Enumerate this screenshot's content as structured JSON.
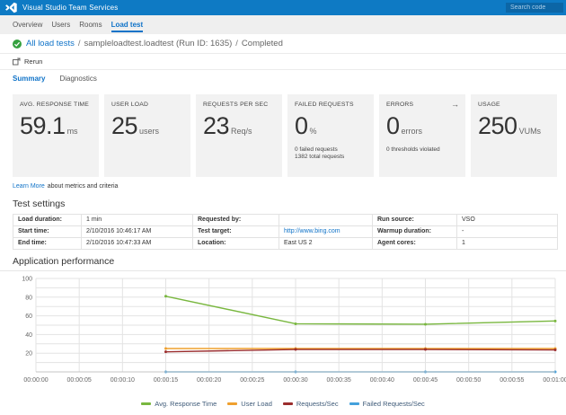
{
  "header": {
    "app_title": "Visual Studio Team Services",
    "search_placeholder": "Search code"
  },
  "nav": {
    "tabs": [
      {
        "label": "Overview"
      },
      {
        "label": "Users"
      },
      {
        "label": "Rooms"
      },
      {
        "label": "Load test"
      }
    ]
  },
  "breadcrumb": {
    "all_tests_link": "All load tests",
    "separator": "/",
    "run_name": "sampleloadtest.loadtest (Run ID: 1635)",
    "status": "Completed"
  },
  "toolbar": {
    "rerun_label": "Rerun"
  },
  "subtabs": {
    "summary": "Summary",
    "diagnostics": "Diagnostics"
  },
  "cards": [
    {
      "title": "AVG. RESPONSE TIME",
      "value": "59.1",
      "unit": "ms",
      "sub1": "",
      "sub2": ""
    },
    {
      "title": "USER LOAD",
      "value": "25",
      "unit": "users",
      "sub1": "",
      "sub2": ""
    },
    {
      "title": "REQUESTS PER SEC",
      "value": "23",
      "unit": "Req/s",
      "sub1": "",
      "sub2": ""
    },
    {
      "title": "FAILED REQUESTS",
      "value": "0",
      "unit": "%",
      "sub1": "0 failed requests",
      "sub2": "1382 total requests"
    },
    {
      "title": "ERRORS",
      "value": "0",
      "unit": "errors",
      "sub1": "0 thresholds violated",
      "sub2": "",
      "arrow": "→"
    },
    {
      "title": "USAGE",
      "value": "250",
      "unit": "VUMs",
      "sub1": "",
      "sub2": ""
    }
  ],
  "learn_more": {
    "link_text": "Learn More",
    "rest_text": "about metrics and criteria"
  },
  "test_settings": {
    "heading": "Test settings",
    "rows": [
      {
        "c1_label": "Load duration:",
        "c1_value": "1 min",
        "c2_label": "Requested by:",
        "c2_value": "",
        "c3_label": "Run source:",
        "c3_value": "VSO"
      },
      {
        "c1_label": "Start time:",
        "c1_value": "2/10/2016 10:46:17 AM",
        "c2_label": "Test target:",
        "c2_value": "http://www.bing.com",
        "c3_label": "Warmup duration:",
        "c3_value": "-"
      },
      {
        "c1_label": "End time:",
        "c1_value": "2/10/2016 10:47:33 AM",
        "c2_label": "Location:",
        "c2_value": "East US 2",
        "c3_label": "Agent cores:",
        "c3_value": "1"
      }
    ]
  },
  "app_performance": {
    "heading": "Application performance"
  },
  "chart_data": {
    "type": "line",
    "title": "Application performance",
    "x_seconds": [
      15,
      30,
      45,
      60
    ],
    "xlim_seconds": [
      0,
      60
    ],
    "xticks": [
      "00:00:00",
      "00:00:05",
      "00:00:10",
      "00:00:15",
      "00:00:20",
      "00:00:25",
      "00:00:30",
      "00:00:35",
      "00:00:40",
      "00:00:45",
      "00:00:50",
      "00:00:55",
      "00:01:00"
    ],
    "ylim": [
      0,
      100
    ],
    "yticks": [
      20,
      40,
      60,
      80,
      100
    ],
    "y_minor_step": 10,
    "grid": true,
    "legend_position": "bottom",
    "series": [
      {
        "name": "Avg. Response Time",
        "color": "#79B73F",
        "values": [
          81,
          51.5,
          51,
          54.5
        ]
      },
      {
        "name": "User Load",
        "color": "#EFA02F",
        "values": [
          25,
          25,
          25,
          25
        ]
      },
      {
        "name": "Requests/Sec",
        "color": "#9B2D2D",
        "values": [
          21.5,
          24,
          24,
          23.5
        ]
      },
      {
        "name": "Failed Requests/Sec",
        "color": "#44A1DC",
        "values": [
          0,
          0,
          0,
          0
        ]
      }
    ]
  },
  "colors": {
    "header_bg": "#0E7AC4",
    "accent_blue": "#1073C8",
    "success_green": "#35A13F",
    "card_bg": "#F2F2F2"
  }
}
